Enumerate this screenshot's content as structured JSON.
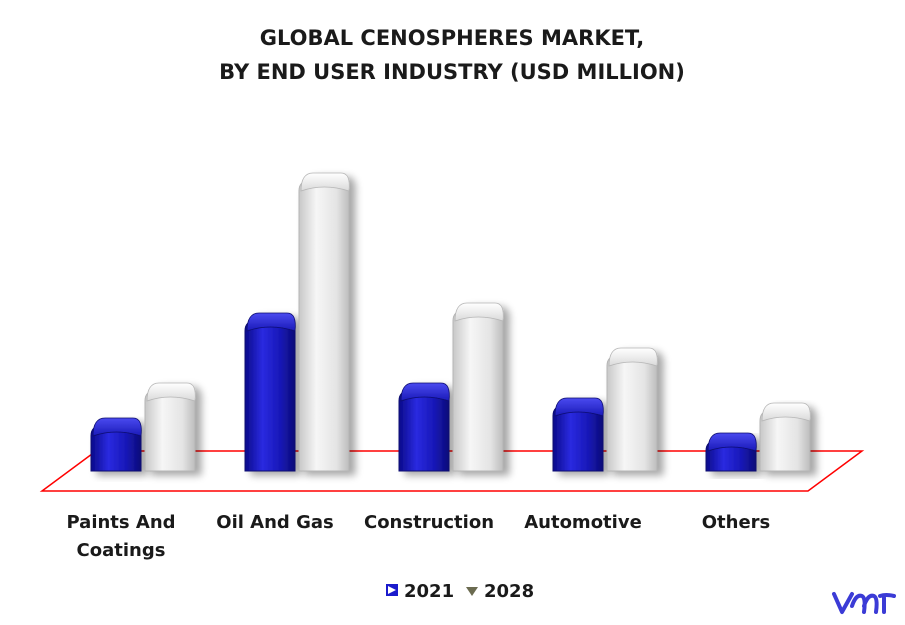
{
  "chart_data": {
    "type": "bar",
    "title_lines": [
      "GLOBAL CENOSPHERES MARKET,",
      "BY END USER INDUSTRY (USD MILLION)"
    ],
    "categories": [
      [
        "Paints And",
        "Coatings"
      ],
      [
        "Oil And Gas"
      ],
      [
        "Construction"
      ],
      [
        "Automotive"
      ],
      [
        "Others"
      ]
    ],
    "series": [
      {
        "name": "2021",
        "values": [
          45,
          150,
          80,
          65,
          30
        ],
        "color": "#1a1acc"
      },
      {
        "name": "2028",
        "values": [
          80,
          290,
          160,
          115,
          60
        ],
        "color": "#e8e8e8"
      }
    ],
    "ylim": [
      0,
      300
    ],
    "grid": false,
    "legend_position": "bottom",
    "floor_outline_color": "#ff0000"
  },
  "brand": {
    "logo": "vmr",
    "logo_color": "#3b3bd6"
  }
}
